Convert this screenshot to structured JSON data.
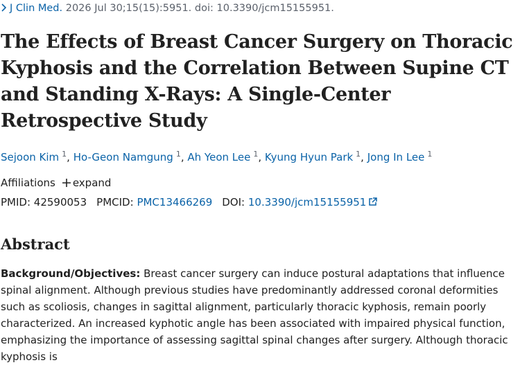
{
  "citation": {
    "journal": "J Clin Med.",
    "details": "2026 Jul 30;15(15):5951. doi: 10.3390/jcm15155951."
  },
  "title": "The Effects of Breast Cancer Surgery on Thoracic Kyphosis and the Correlation Between Supine CT and Standing X-Rays: A Single-Center Retrospective Study",
  "authors": {
    "separator": ",",
    "list": [
      {
        "name": "Sejoon Kim",
        "affiliation": "1"
      },
      {
        "name": "Ho-Geon Namgung",
        "affiliation": "1"
      },
      {
        "name": "Ah Yeon Lee",
        "affiliation": "1"
      },
      {
        "name": "Kyung Hyun Park",
        "affiliation": "1"
      },
      {
        "name": "Jong In Lee",
        "affiliation": "1"
      }
    ]
  },
  "affiliations": {
    "label": "Affiliations",
    "toggle": "expand"
  },
  "identifiers": [
    {
      "label": "PMID:",
      "value": "42590053"
    },
    {
      "label": "PMCID:",
      "value": "PMC13466269"
    },
    {
      "label": "DOI:",
      "value": "10.3390/jcm15155951"
    }
  ],
  "abstract": {
    "heading": "Abstract",
    "sections": [
      {
        "label": "Background/Objectives:",
        "text": "Breast cancer surgery can induce postural adaptations that influence spinal alignment. Although previous studies have predominantly addressed coronal deformities such as scoliosis, changes in sagittal alignment, particularly thoracic kyphosis, remain poorly characterized. An increased kyphotic angle has been associated with impaired physical function, emphasizing the importance of assessing sagittal spinal changes after surgery. Although thoracic kyphosis is"
      }
    ]
  }
}
